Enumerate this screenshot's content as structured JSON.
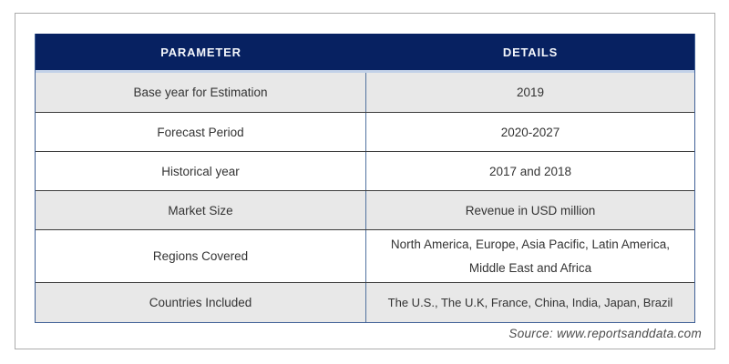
{
  "chart_data": {
    "type": "table",
    "title": "",
    "columns": [
      "PARAMETER",
      "DETAILS"
    ],
    "rows": [
      [
        "Base year for Estimation",
        "2019"
      ],
      [
        "Forecast Period",
        "2020-2027"
      ],
      [
        "Historical year",
        "2017 and 2018"
      ],
      [
        "Market Size",
        "Revenue in USD million"
      ],
      [
        "Regions Covered",
        "North America, Europe, Asia Pacific, Latin America, Middle East and Africa"
      ],
      [
        "Countries Included",
        "The U.S., The  U.K, France, China, India, Japan, Brazil"
      ]
    ],
    "source": "Source: www.reportsanddata.com",
    "layout_hints": {
      "row_shading": [
        "shaded",
        "plain",
        "plain",
        "shaded",
        "plain",
        "shaded"
      ],
      "header_position": "top",
      "column_alignment": "center"
    }
  },
  "colors": {
    "header_bg": "#072161",
    "header_text": "#f4f7fc",
    "row_shaded": "#e8e8e8",
    "row_plain": "#ffffff",
    "divider_blue": "#51739f",
    "table_border": "#3f6096",
    "row_border": "#3c3c3c",
    "header_underline": "#c2d1e8",
    "frame_border": "#ababab",
    "cell_text": "#333333",
    "source_text": "#4a4a4a"
  }
}
